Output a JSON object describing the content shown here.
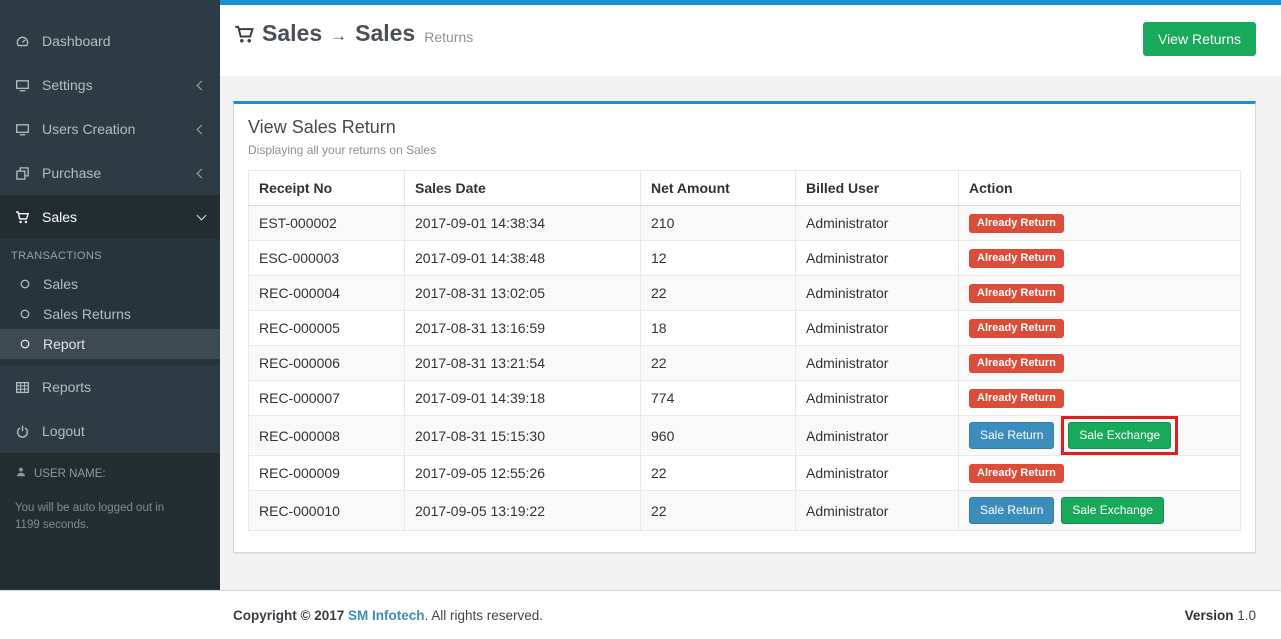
{
  "sidebar": {
    "items": [
      {
        "name": "dashboard",
        "label": "Dashboard",
        "icon": "tachometer-icon",
        "chevron": null,
        "active": false
      },
      {
        "name": "settings",
        "label": "Settings",
        "icon": "desktop-icon",
        "chevron": "left",
        "active": false
      },
      {
        "name": "users-creation",
        "label": "Users Creation",
        "icon": "desktop-icon",
        "chevron": "left",
        "active": false
      },
      {
        "name": "purchase",
        "label": "Purchase",
        "icon": "clone-icon",
        "chevron": "left",
        "active": false
      },
      {
        "name": "sales",
        "label": "Sales",
        "icon": "cart-icon",
        "chevron": "down",
        "active": true
      }
    ],
    "section_label": "TRANSACTIONS",
    "submenu": [
      {
        "name": "sales",
        "label": "Sales",
        "icon": "circle-o-icon",
        "hover": false
      },
      {
        "name": "sales-returns",
        "label": "Sales Returns",
        "icon": "circle-o-icon",
        "hover": false
      },
      {
        "name": "report",
        "label": "Report",
        "icon": "circle-o-icon",
        "hover": true
      }
    ],
    "items_bottom": [
      {
        "name": "reports",
        "label": "Reports",
        "icon": "table-icon",
        "chevron": null,
        "active": false
      },
      {
        "name": "logout",
        "label": "Logout",
        "icon": "power-icon",
        "chevron": null,
        "active": false
      }
    ],
    "user_label": "USER NAME:",
    "logout_note_line1": "You will be auto logged out in",
    "logout_note_line2": "1199 seconds."
  },
  "header": {
    "breadcrumb": {
      "part1": "Sales",
      "arrow": "→",
      "part2": "Sales",
      "part3": "Returns"
    },
    "view_returns_button": "View Returns"
  },
  "panel": {
    "title": "View Sales Return",
    "subtitle": "Displaying all your returns on Sales",
    "table": {
      "columns": [
        "Receipt No",
        "Sales Date",
        "Net Amount",
        "Billed User",
        "Action"
      ],
      "action_labels": {
        "already_return": "Already Return",
        "sale_return": "Sale Return",
        "sale_exchange": "Sale Exchange"
      },
      "rows": [
        {
          "receipt_no": "EST-000002",
          "sales_date": "2017-09-01 14:38:34",
          "net_amount": "210",
          "billed_user": "Administrator",
          "actions": "already_return",
          "highlight_exchange": false
        },
        {
          "receipt_no": "ESC-000003",
          "sales_date": "2017-09-01 14:38:48",
          "net_amount": "12",
          "billed_user": "Administrator",
          "actions": "already_return",
          "highlight_exchange": false
        },
        {
          "receipt_no": "REC-000004",
          "sales_date": "2017-08-31 13:02:05",
          "net_amount": "22",
          "billed_user": "Administrator",
          "actions": "already_return",
          "highlight_exchange": false
        },
        {
          "receipt_no": "REC-000005",
          "sales_date": "2017-08-31 13:16:59",
          "net_amount": "18",
          "billed_user": "Administrator",
          "actions": "already_return",
          "highlight_exchange": false
        },
        {
          "receipt_no": "REC-000006",
          "sales_date": "2017-08-31 13:21:54",
          "net_amount": "22",
          "billed_user": "Administrator",
          "actions": "already_return",
          "highlight_exchange": false
        },
        {
          "receipt_no": "REC-000007",
          "sales_date": "2017-09-01 14:39:18",
          "net_amount": "774",
          "billed_user": "Administrator",
          "actions": "already_return",
          "highlight_exchange": false
        },
        {
          "receipt_no": "REC-000008",
          "sales_date": "2017-08-31 15:15:30",
          "net_amount": "960",
          "billed_user": "Administrator",
          "actions": "return_exchange",
          "highlight_exchange": true
        },
        {
          "receipt_no": "REC-000009",
          "sales_date": "2017-09-05 12:55:26",
          "net_amount": "22",
          "billed_user": "Administrator",
          "actions": "already_return",
          "highlight_exchange": false
        },
        {
          "receipt_no": "REC-000010",
          "sales_date": "2017-09-05 13:19:22",
          "net_amount": "22",
          "billed_user": "Administrator",
          "actions": "return_exchange",
          "highlight_exchange": false
        }
      ]
    }
  },
  "footer": {
    "copyright_prefix": "Copyright © 2017 ",
    "company": "SM Infotech",
    "copyright_suffix": ". All rights reserved.",
    "version_label": "Version",
    "version_value": "1.0"
  },
  "colors": {
    "accent_blue": "#1793d4",
    "success_green": "#18a95b",
    "danger_red": "#dd4b39",
    "primary_blue": "#3c8dbc",
    "highlight_red": "#e51c1c",
    "sidebar_bg": "#2d3c44"
  }
}
